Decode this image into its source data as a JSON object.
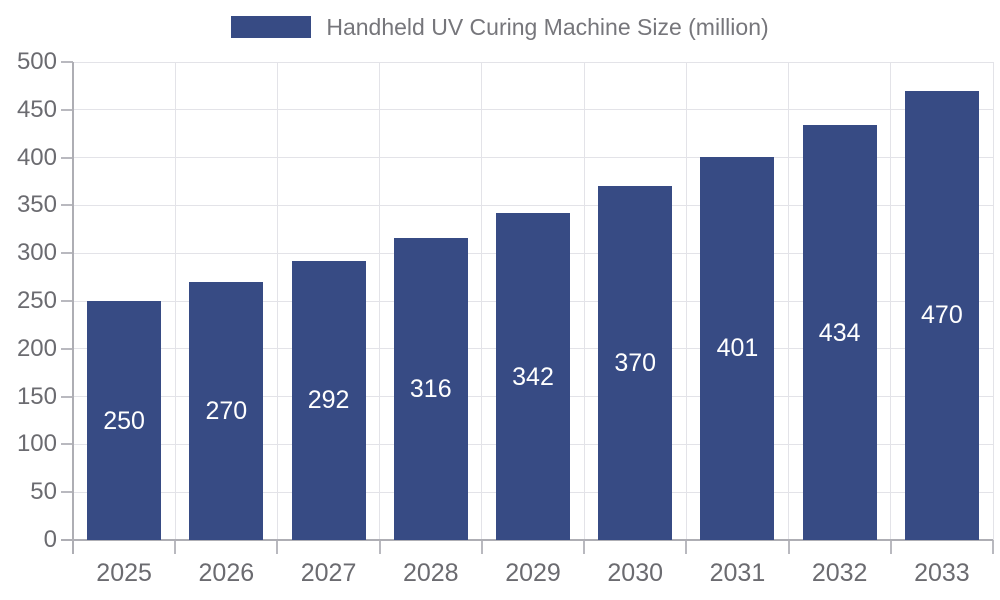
{
  "legend": {
    "label": "Handheld UV Curing Machine Size (million)"
  },
  "colors": {
    "bar": "#374B84",
    "value_label": "#ffffff",
    "axis_label": "#6b6b70",
    "legend_text": "#76767b",
    "gridline": "#e3e3e8",
    "axis_line": "#aeaeb4",
    "background": "#ffffff"
  },
  "chart_data": {
    "type": "bar",
    "title": "Handheld UV Curing Machine Size (million)",
    "categories": [
      "2025",
      "2026",
      "2027",
      "2028",
      "2029",
      "2030",
      "2031",
      "2032",
      "2033"
    ],
    "series": [
      {
        "name": "Handheld UV Curing Machine Size (million)",
        "values": [
          250,
          270,
          292,
          316,
          342,
          370,
          401,
          434,
          470
        ]
      }
    ],
    "xlabel": "",
    "ylabel": "",
    "ylim": [
      0,
      500
    ],
    "ytick_step": 50,
    "yticks": [
      0,
      50,
      100,
      150,
      200,
      250,
      300,
      350,
      400,
      450,
      500
    ],
    "grid": true,
    "legend_position": "top",
    "value_labels": "inside-center"
  }
}
